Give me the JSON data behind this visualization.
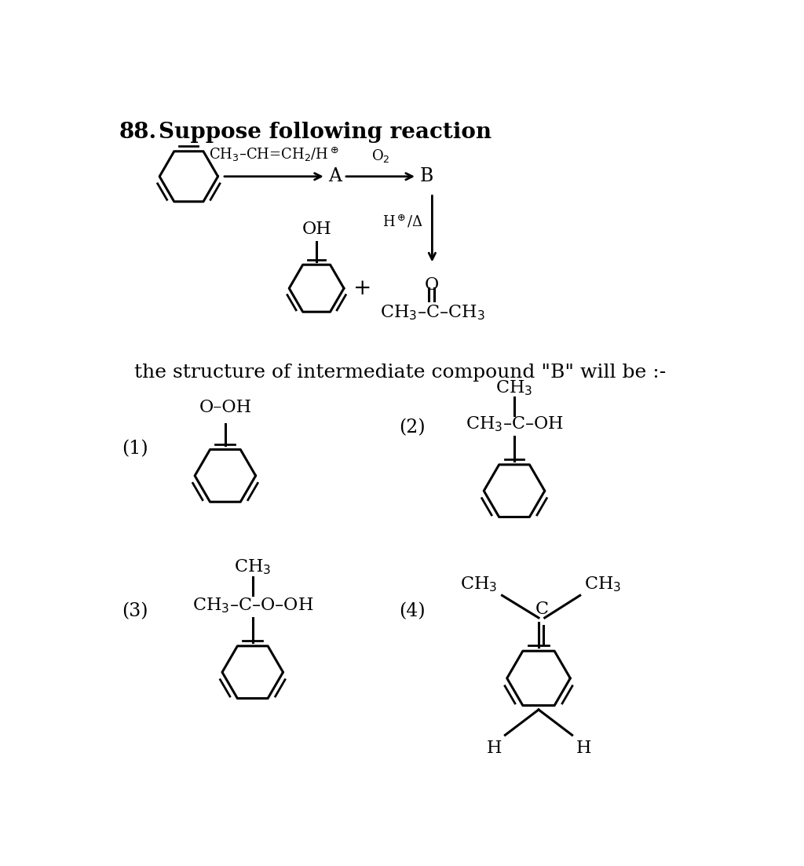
{
  "title_number": "88.",
  "title_text": "Suppose following reaction",
  "subtitle": "the structure of intermediate compound \"B\" will be :-",
  "bg_color": "#ffffff",
  "text_color": "#000000"
}
